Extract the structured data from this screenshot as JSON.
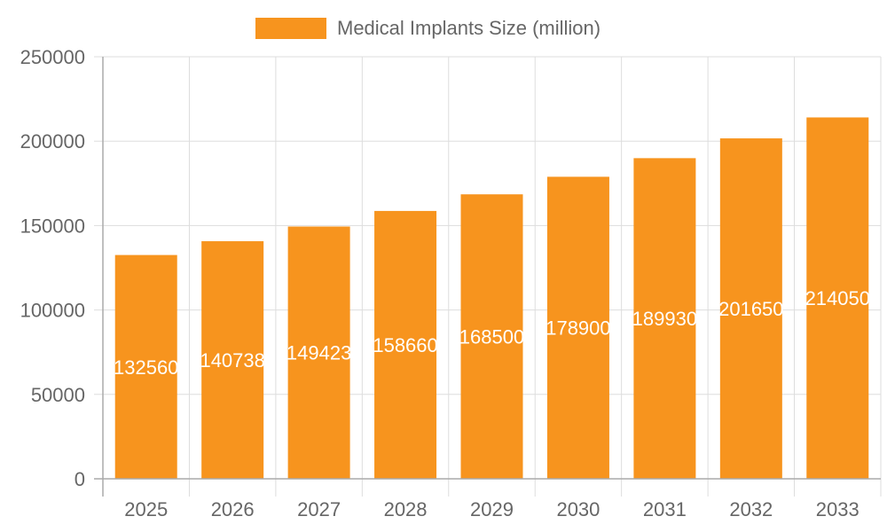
{
  "chart_data": {
    "type": "bar",
    "title": "",
    "xlabel": "",
    "ylabel": "",
    "categories": [
      "2025",
      "2026",
      "2027",
      "2028",
      "2029",
      "2030",
      "2031",
      "2032",
      "2033"
    ],
    "series": [
      {
        "name": "Medical Implants Size (million)",
        "values": [
          132560,
          140738,
          149423,
          158660,
          168500,
          178900,
          189930,
          201650,
          214050
        ],
        "color": "#f7941e"
      }
    ],
    "ylim": [
      0,
      250000
    ],
    "yticks": [
      "0",
      "50000",
      "100000",
      "150000",
      "200000",
      "250000"
    ],
    "grid": true,
    "legend": "top",
    "data_labels": true
  }
}
